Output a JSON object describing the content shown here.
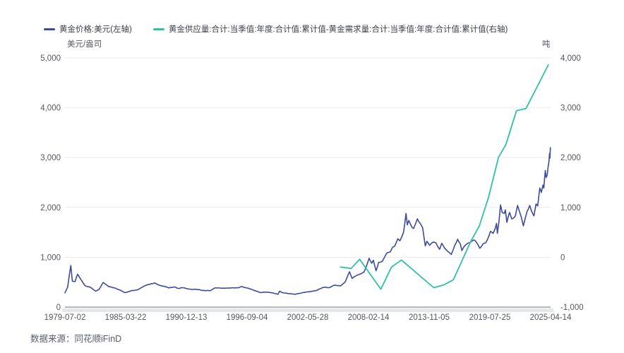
{
  "header": {
    "legend": [
      {
        "label": "黄金价格:美元(左轴)",
        "color": "#3c4b9e"
      },
      {
        "label": "黄金供应量:合计:当季值:年度:合计值:累计值-黄金需求量:合计:当季值:年度:合计值:累计值(右轴)",
        "color": "#2fc1a5"
      }
    ],
    "left_unit": "美元/盎司",
    "right_unit": "吨"
  },
  "footer": {
    "source": "数据来源：同花顺iFinD"
  },
  "chart_data": {
    "type": "line",
    "title": "",
    "x_tick_labels": [
      "1979-07-02",
      "1985-03-22",
      "1990-12-13",
      "1996-09-04",
      "2002-05-28",
      "2008-02-14",
      "2013-11-05",
      "2019-07-25",
      "2025-04-14"
    ],
    "x_range_years": [
      1979.5,
      2025.32
    ],
    "left_axis": {
      "label": "美元/盎司",
      "ticks": [
        0,
        1000,
        2000,
        3000,
        4000,
        5000
      ],
      "range": [
        0,
        5000
      ]
    },
    "right_axis": {
      "label": "吨",
      "ticks": [
        -1000,
        0,
        1000,
        2000,
        3000,
        4000
      ],
      "range": [
        -1000,
        4000
      ]
    },
    "grid": true,
    "legend_position": "top",
    "series": [
      {
        "name": "黄金价格:美元(左轴)",
        "axis": "left",
        "color": "#3c4b9e",
        "texture": true,
        "points": [
          [
            1979.5,
            285
          ],
          [
            1979.75,
            400
          ],
          [
            1980.05,
            835
          ],
          [
            1980.2,
            520
          ],
          [
            1980.45,
            510
          ],
          [
            1980.7,
            660
          ],
          [
            1981.0,
            555
          ],
          [
            1981.4,
            430
          ],
          [
            1981.9,
            400
          ],
          [
            1982.4,
            320
          ],
          [
            1982.7,
            350
          ],
          [
            1983.1,
            495
          ],
          [
            1983.6,
            415
          ],
          [
            1984.2,
            385
          ],
          [
            1984.7,
            340
          ],
          [
            1985.15,
            290
          ],
          [
            1985.7,
            325
          ],
          [
            1986.3,
            345
          ],
          [
            1986.8,
            400
          ],
          [
            1987.3,
            450
          ],
          [
            1987.95,
            485
          ],
          [
            1988.4,
            440
          ],
          [
            1988.9,
            415
          ],
          [
            1989.3,
            385
          ],
          [
            1989.8,
            405
          ],
          [
            1990.2,
            375
          ],
          [
            1990.6,
            390
          ],
          [
            1991.1,
            365
          ],
          [
            1991.9,
            355
          ],
          [
            1992.6,
            335
          ],
          [
            1993.2,
            328
          ],
          [
            1993.7,
            388
          ],
          [
            1994.4,
            380
          ],
          [
            1995.2,
            385
          ],
          [
            1995.9,
            388
          ],
          [
            1996.1,
            412
          ],
          [
            1996.8,
            380
          ],
          [
            1997.4,
            330
          ],
          [
            1997.95,
            290
          ],
          [
            1998.4,
            300
          ],
          [
            1999.1,
            285
          ],
          [
            1999.6,
            256
          ],
          [
            1999.75,
            320
          ],
          [
            2000.1,
            285
          ],
          [
            2000.7,
            270
          ],
          [
            2001.25,
            258
          ],
          [
            2001.7,
            278
          ],
          [
            2002.3,
            305
          ],
          [
            2002.9,
            320
          ],
          [
            2003.3,
            340
          ],
          [
            2003.95,
            400
          ],
          [
            2004.4,
            390
          ],
          [
            2004.95,
            440
          ],
          [
            2005.5,
            425
          ],
          [
            2005.95,
            510
          ],
          [
            2006.35,
            710
          ],
          [
            2006.6,
            575
          ],
          [
            2006.9,
            620
          ],
          [
            2007.3,
            660
          ],
          [
            2007.7,
            700
          ],
          [
            2007.9,
            790
          ],
          [
            2008.2,
            980
          ],
          [
            2008.45,
            880
          ],
          [
            2008.6,
            940
          ],
          [
            2008.85,
            730
          ],
          [
            2009.1,
            900
          ],
          [
            2009.45,
            920
          ],
          [
            2009.9,
            1090
          ],
          [
            2010.2,
            1110
          ],
          [
            2010.4,
            1200
          ],
          [
            2010.6,
            1220
          ],
          [
            2010.9,
            1370
          ],
          [
            2011.1,
            1330
          ],
          [
            2011.45,
            1500
          ],
          [
            2011.68,
            1880
          ],
          [
            2011.8,
            1650
          ],
          [
            2011.95,
            1740
          ],
          [
            2012.15,
            1640
          ],
          [
            2012.4,
            1580
          ],
          [
            2012.75,
            1770
          ],
          [
            2013.05,
            1670
          ],
          [
            2013.25,
            1590
          ],
          [
            2013.5,
            1230
          ],
          [
            2013.65,
            1320
          ],
          [
            2013.9,
            1240
          ],
          [
            2014.2,
            1300
          ],
          [
            2014.5,
            1290
          ],
          [
            2014.85,
            1160
          ],
          [
            2015.05,
            1280
          ],
          [
            2015.3,
            1190
          ],
          [
            2015.6,
            1120
          ],
          [
            2015.95,
            1055
          ],
          [
            2016.3,
            1250
          ],
          [
            2016.55,
            1360
          ],
          [
            2016.8,
            1270
          ],
          [
            2016.95,
            1135
          ],
          [
            2017.3,
            1250
          ],
          [
            2017.7,
            1290
          ],
          [
            2018.05,
            1345
          ],
          [
            2018.3,
            1310
          ],
          [
            2018.65,
            1180
          ],
          [
            2018.95,
            1270
          ],
          [
            2019.2,
            1290
          ],
          [
            2019.45,
            1400
          ],
          [
            2019.65,
            1520
          ],
          [
            2019.9,
            1480
          ],
          [
            2020.1,
            1580
          ],
          [
            2020.22,
            1680
          ],
          [
            2020.3,
            1480
          ],
          [
            2020.45,
            1720
          ],
          [
            2020.6,
            2050
          ],
          [
            2020.75,
            1900
          ],
          [
            2020.95,
            1880
          ],
          [
            2021.05,
            1950
          ],
          [
            2021.2,
            1700
          ],
          [
            2021.45,
            1900
          ],
          [
            2021.65,
            1770
          ],
          [
            2021.9,
            1800
          ],
          [
            2022.0,
            1830
          ],
          [
            2022.2,
            2040
          ],
          [
            2022.35,
            1940
          ],
          [
            2022.55,
            1810
          ],
          [
            2022.75,
            1630
          ],
          [
            2022.95,
            1800
          ],
          [
            2023.1,
            1920
          ],
          [
            2023.35,
            2040
          ],
          [
            2023.5,
            1940
          ],
          [
            2023.75,
            1830
          ],
          [
            2023.95,
            2070
          ],
          [
            2024.1,
            2030
          ],
          [
            2024.3,
            2390
          ],
          [
            2024.45,
            2300
          ],
          [
            2024.6,
            2450
          ],
          [
            2024.68,
            2390
          ],
          [
            2024.82,
            2740
          ],
          [
            2024.9,
            2600
          ],
          [
            2025.0,
            2650
          ],
          [
            2025.08,
            2800
          ],
          [
            2025.17,
            2920
          ],
          [
            2025.22,
            3080
          ],
          [
            2025.26,
            2990
          ],
          [
            2025.3,
            3200
          ]
        ]
      },
      {
        "name": "黄金供应量:合计:当季值:年度:合计值:累计值-黄金需求量:合计:当季值:年度:合计值:累计值(右轴)",
        "axis": "right",
        "color": "#2fc1a5",
        "texture": false,
        "points": [
          [
            2005.5,
            -195
          ],
          [
            2006.5,
            -225
          ],
          [
            2007.3,
            -40
          ],
          [
            2009.3,
            -640
          ],
          [
            2010.3,
            -200
          ],
          [
            2011.25,
            -55
          ],
          [
            2014.3,
            -610
          ],
          [
            2015.3,
            -550
          ],
          [
            2016.15,
            -450
          ],
          [
            2017.75,
            300
          ],
          [
            2018.6,
            630
          ],
          [
            2019.45,
            1195
          ],
          [
            2020.4,
            2000
          ],
          [
            2021.1,
            2260
          ],
          [
            2022.1,
            2940
          ],
          [
            2023.0,
            2985
          ],
          [
            2025.1,
            3860
          ]
        ]
      }
    ]
  }
}
